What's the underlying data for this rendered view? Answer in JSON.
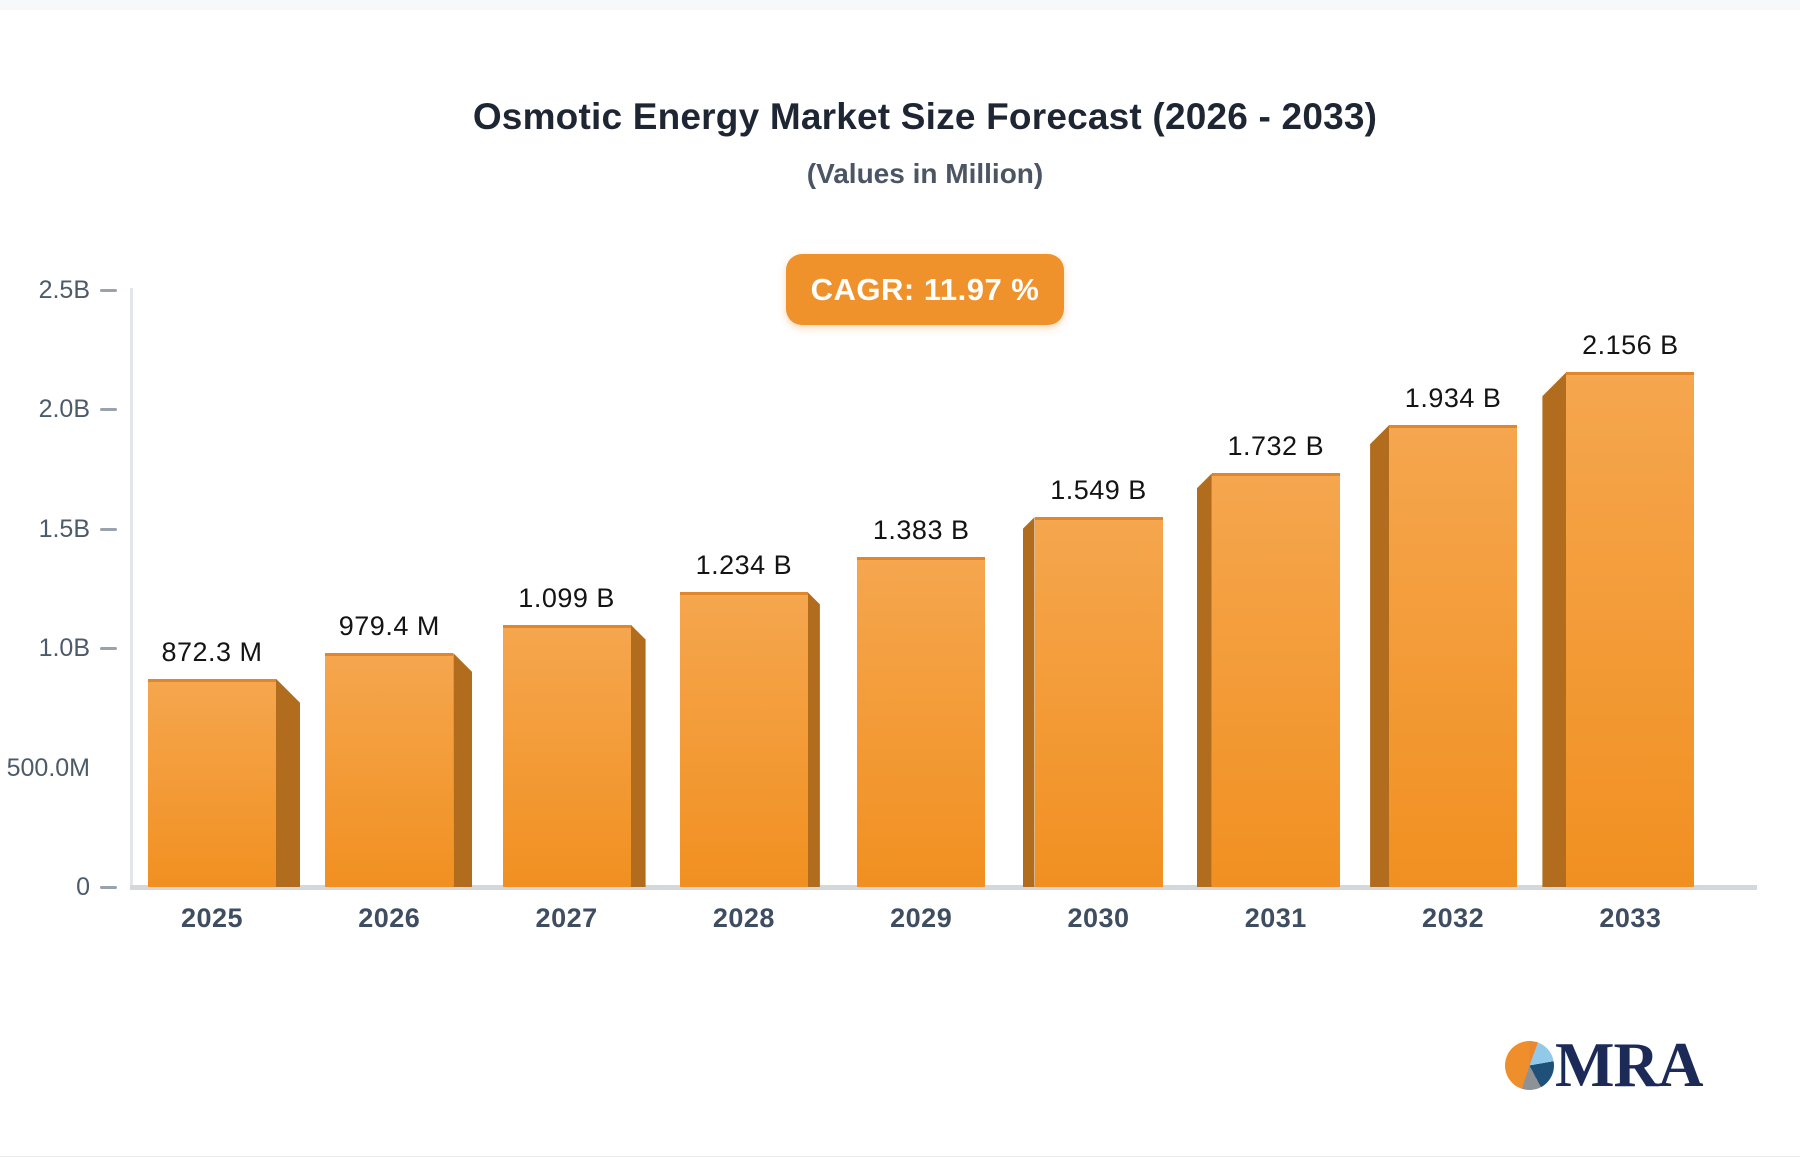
{
  "page": {
    "title": "Osmotic Energy Market Size Forecast (2026 - 2033)",
    "subtitle": "(Values in Million)",
    "cagr_label": "CAGR: 11.97 %"
  },
  "chart_data": {
    "type": "bar",
    "title": "Osmotic Energy Market Size Forecast (2026 - 2033)",
    "subtitle": "(Values in Million)",
    "annotation": "CAGR: 11.97 %",
    "categories": [
      "2025",
      "2026",
      "2027",
      "2028",
      "2029",
      "2030",
      "2031",
      "2032",
      "2033"
    ],
    "series": [
      {
        "name": "Osmotic Energy Market Size",
        "values_millions": [
          872.3,
          979.4,
          1099,
          1234,
          1383,
          1549,
          1732,
          1934,
          2156
        ],
        "value_labels": [
          "872.3 M",
          "979.4 M",
          "1.099 B",
          "1.234 B",
          "1.383 B",
          "1.549 B",
          "1.732 B",
          "1.934 B",
          "2.156 B"
        ]
      }
    ],
    "ylim_millions": [
      0,
      2500
    ],
    "yticks": [
      {
        "label": "2.5B",
        "value_millions": 2500,
        "tick": true
      },
      {
        "label": "2.0B",
        "value_millions": 2000,
        "tick": true
      },
      {
        "label": "1.5B",
        "value_millions": 1500,
        "tick": true
      },
      {
        "label": "1.0B",
        "value_millions": 1000,
        "tick": true
      },
      {
        "label": "500.0M",
        "value_millions": 500,
        "tick": false
      },
      {
        "label": "0",
        "value_millions": 0,
        "tick": true
      }
    ],
    "grid": false,
    "legend": false,
    "bar_style": "3d-perspective-orange"
  },
  "logo": {
    "text": "MRA"
  },
  "colors": {
    "accent-orange": "#f0922c",
    "bar-face-top": "#f5a64e",
    "bar-face-bottom": "#f19021",
    "bar-top-edge": "#e0862b",
    "bar-side": "#b16d1d",
    "title-color": "#1f2633",
    "subtitle-color": "#4b5563",
    "tick-label-color": "#4d5a6a",
    "year-label-color": "#3f4d61",
    "value-label-color": "#141414",
    "axis-line": "#e3e6e9",
    "baseline": "#d5d8db",
    "logo-navy": "#1c2a57",
    "logo-orange": "#ef8f2b",
    "logo-lightblue": "#93c9e8",
    "logo-blue": "#1f5178",
    "logo-gray": "#8e9196"
  }
}
